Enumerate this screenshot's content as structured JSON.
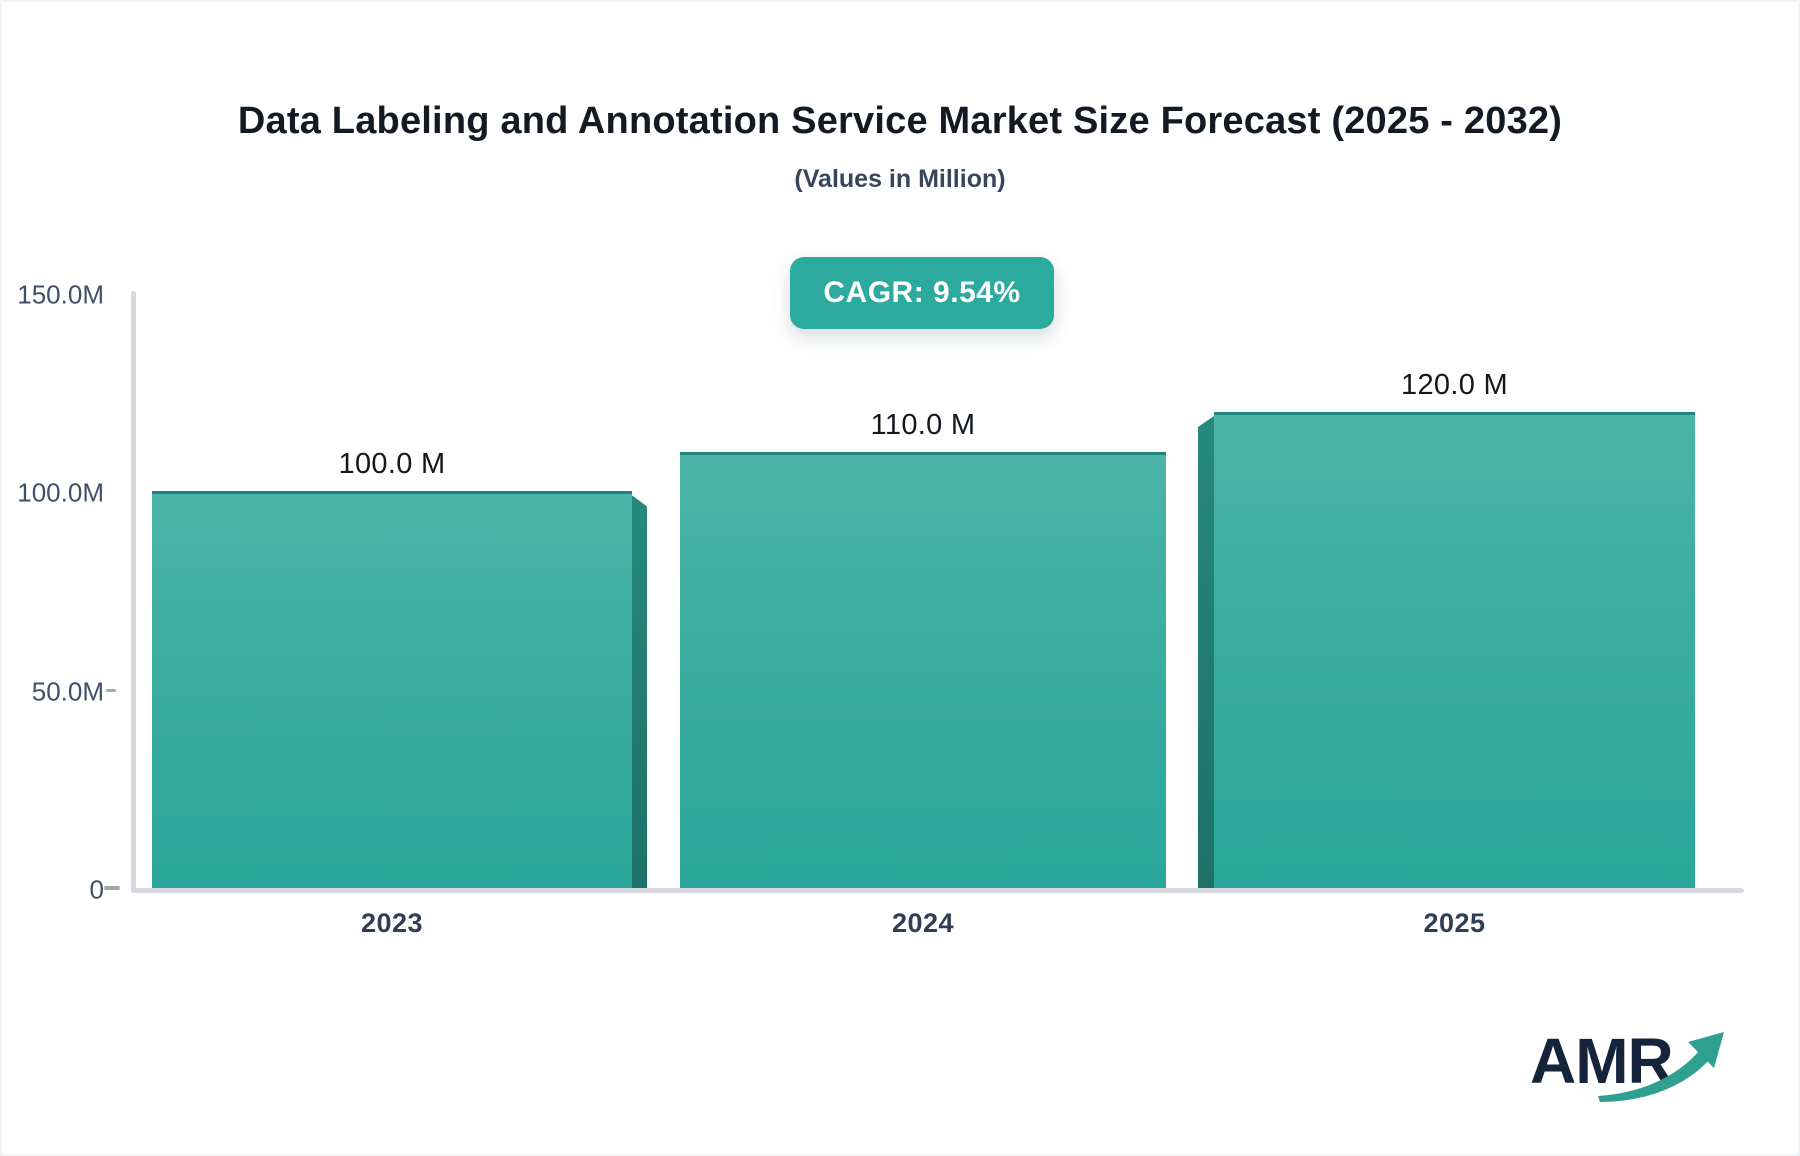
{
  "header": {
    "title": "Data Labeling and Annotation Service Market Size Forecast (2025 - 2032)",
    "subtitle": "(Values in Million)",
    "badge_label": "CAGR: 9.54%"
  },
  "chart_data": {
    "type": "bar",
    "title": "Data Labeling and Annotation Service Market Size Forecast (2025 - 2032)",
    "subtitle": "(Values in Million)",
    "annotation_badge": "CAGR: 9.54%",
    "categories": [
      "2023",
      "2024",
      "2025"
    ],
    "values": [
      100.0,
      110.0,
      120.0
    ],
    "value_labels": [
      "100.0 M",
      "110.0 M",
      "120.0 M"
    ],
    "xlabel": "",
    "ylabel": "",
    "ylim": [
      0,
      150
    ],
    "y_ticks": [
      {
        "value": 150,
        "label": "150.0M"
      },
      {
        "value": 100,
        "label": "100.0M"
      },
      {
        "value": 50,
        "label": "50.0M"
      },
      {
        "value": 0,
        "label": "0"
      }
    ],
    "grid": false,
    "legend": false,
    "style_3d": true,
    "colors": {
      "bar_gradient_top": "#4cb4a9",
      "bar_gradient_bottom": "#2aa79a",
      "bar_top_edge": "#1f857a",
      "bar_side_3d": "#217c71",
      "axis_line": "#d6d8de",
      "badge_background": "#2baa9d",
      "badge_text": "#ffffff",
      "title_text": "#131a24",
      "axis_label_text": "#41506a"
    }
  },
  "footer": {
    "logo_text": "AMR"
  }
}
